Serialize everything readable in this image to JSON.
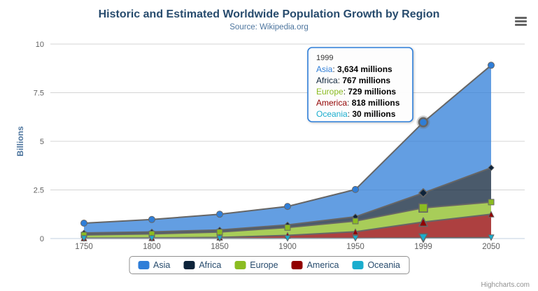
{
  "chart_data": {
    "type": "area",
    "stacking": "normal",
    "title": "Historic and Estimated Worldwide Population Growth by Region",
    "subtitle": "Source: Wikipedia.org",
    "categories": [
      "1750",
      "1800",
      "1850",
      "1900",
      "1950",
      "1999",
      "2050"
    ],
    "series": [
      {
        "name": "Asia",
        "color": "#2f7ed8",
        "marker": "circle",
        "values": [
          502,
          635,
          809,
          947,
          1402,
          3634,
          5268
        ]
      },
      {
        "name": "Africa",
        "color": "#0d233a",
        "marker": "diamond",
        "values": [
          106,
          107,
          111,
          133,
          221,
          767,
          1766
        ]
      },
      {
        "name": "Europe",
        "color": "#8bbc21",
        "marker": "square",
        "values": [
          163,
          203,
          276,
          408,
          547,
          729,
          628
        ]
      },
      {
        "name": "America",
        "color": "#910000",
        "marker": "triangle",
        "values": [
          18,
          31,
          54,
          156,
          339,
          818,
          1201
        ]
      },
      {
        "name": "Oceania",
        "color": "#1aadce",
        "marker": "triangle-down",
        "values": [
          2,
          2,
          2,
          6,
          13,
          30,
          46
        ]
      }
    ],
    "unit": "millions",
    "xlabel": "",
    "ylabel": "Billions",
    "ylim": [
      0,
      10
    ],
    "yticks": [
      0,
      2.5,
      5,
      7.5,
      10
    ],
    "grid": "horizontal",
    "legend_position": "bottom-center",
    "fill_opacity": 0.75,
    "outline_color": "#666666"
  },
  "tooltip": {
    "visible": true,
    "category": "1999",
    "hover_index": 5,
    "unit": "millions",
    "border_color": "#2f7ed8",
    "entries": [
      {
        "series": "Asia",
        "value": "3,634"
      },
      {
        "series": "Africa",
        "value": "767"
      },
      {
        "series": "Europe",
        "value": "729"
      },
      {
        "series": "America",
        "value": "818"
      },
      {
        "series": "Oceania",
        "value": "30"
      }
    ]
  },
  "theme": {
    "title_color": "#274b6d",
    "subtitle_color": "#4d759e",
    "axis_title_color": "#4d759e",
    "axis_label_color": "#606060",
    "grid_color": "#d4d4d4",
    "axis_line_color": "#c0d0e0",
    "legend_border_color": "#909090",
    "legend_text_color": "#274b6d",
    "tooltip_text_color": "#333333",
    "tooltip_value_color": "#000000",
    "credit_color": "#909090",
    "menu_icon_color": "#666666"
  },
  "icons": {
    "context_menu": "hamburger-menu-icon"
  },
  "credits": {
    "label": "Highcharts.com"
  }
}
